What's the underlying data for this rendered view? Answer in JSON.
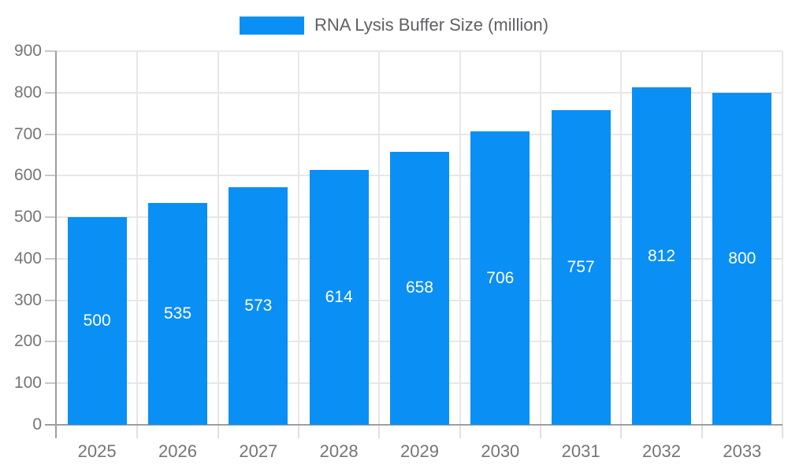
{
  "legend": {
    "label": "RNA Lysis Buffer Size (million)"
  },
  "chart_data": {
    "type": "bar",
    "title": "",
    "categories": [
      "2025",
      "2026",
      "2027",
      "2028",
      "2029",
      "2030",
      "2031",
      "2032",
      "2033"
    ],
    "series": [
      {
        "name": "RNA Lysis Buffer Size (million)",
        "values": [
          500,
          535,
          573,
          614,
          658,
          706,
          757,
          812,
          800
        ],
        "color": "#0a8ff5"
      }
    ],
    "value_labels": "inside-center",
    "value_label_color": "#ffffff",
    "ylim": [
      0,
      900
    ],
    "ytick_step": 100,
    "grid": true,
    "legend_position": "top",
    "axis_color": "#9e9e9e",
    "grid_color": "#e7e7e7",
    "tick_label_color": "#757575"
  }
}
